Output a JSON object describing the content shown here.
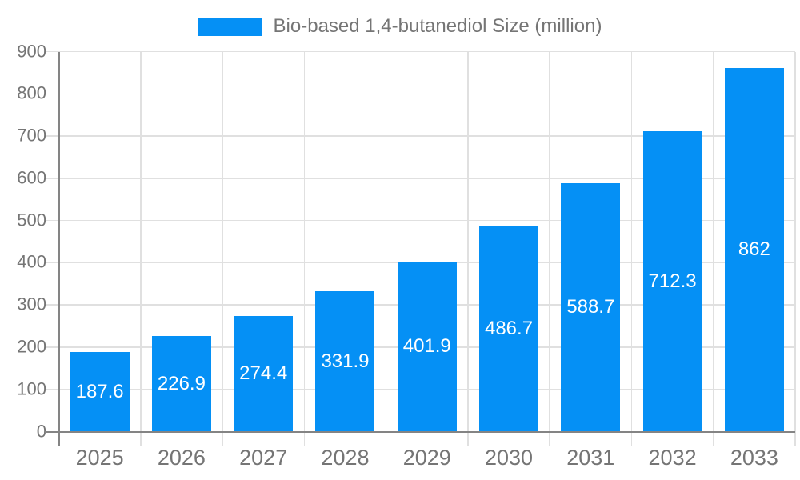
{
  "chart_data": {
    "type": "bar",
    "legend_label": "Bio-based 1,4-butanediol Size (million)",
    "categories": [
      "2025",
      "2026",
      "2027",
      "2028",
      "2029",
      "2030",
      "2031",
      "2032",
      "2033"
    ],
    "values": [
      187.6,
      226.9,
      274.4,
      331.9,
      401.9,
      486.7,
      588.7,
      712.3,
      862
    ],
    "value_labels": [
      "187.6",
      "226.9",
      "274.4",
      "331.9",
      "401.9",
      "486.7",
      "588.7",
      "712.3",
      "862"
    ],
    "title": "",
    "xlabel": "",
    "ylabel": "",
    "ylim": [
      0,
      900
    ],
    "yticks": [
      0,
      100,
      200,
      300,
      400,
      500,
      600,
      700,
      800,
      900
    ],
    "grid": true,
    "legend_position": "top-center",
    "value_label_position": "inside-center",
    "colors": {
      "bar": "#0590f5",
      "value_label": "#ffffff",
      "axis": "#848484",
      "grid": "#e0e0e0",
      "tick_label": "#757575"
    }
  }
}
